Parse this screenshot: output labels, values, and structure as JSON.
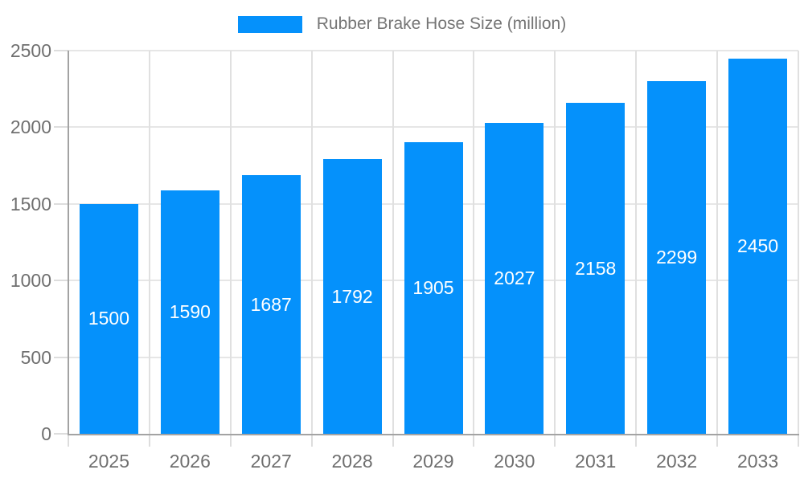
{
  "legend": {
    "label": "Rubber Brake Hose Size (million)"
  },
  "colors": {
    "bar": "#0591FB",
    "grid_horizontal": "#e6e6e6",
    "grid_vertical": "#e0e0e0",
    "axis": "#a3a3a3",
    "tick": "#dddddd",
    "axis_text": "#6f6f6f",
    "legend_text": "#757575",
    "bar_value_text": "#ffffff",
    "background": "#ffffff"
  },
  "chart_data": {
    "type": "bar",
    "title": "Rubber Brake Hose Size (million)",
    "categories": [
      "2025",
      "2026",
      "2027",
      "2028",
      "2029",
      "2030",
      "2031",
      "2032",
      "2033"
    ],
    "values": [
      1500,
      1590,
      1687,
      1792,
      1905,
      2027,
      2158,
      2299,
      2450
    ],
    "xlabel": "",
    "ylabel": "",
    "ylim": [
      0,
      2500
    ],
    "yticks": [
      0,
      500,
      1000,
      1500,
      2000,
      2500
    ],
    "grid": true,
    "legend_position": "top-center",
    "value_labels": "inside-center"
  }
}
